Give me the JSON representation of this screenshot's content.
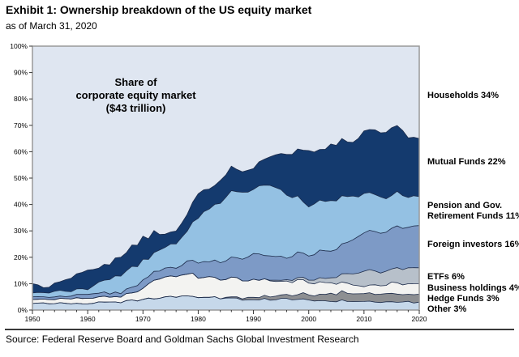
{
  "header": {
    "title": "Exhibit 1: Ownership breakdown of the US equity market",
    "subtitle": "as of March 31, 2020"
  },
  "annotation": {
    "line1": "Share of",
    "line2": "corporate equity market",
    "line3": "($43 trillion)"
  },
  "legend_labels": {
    "households": "Households 34%",
    "mutual_funds": "Mutual Funds 22%",
    "pension_line1": "Pension and Gov.",
    "pension_line2": "Retirement Funds 11%",
    "foreign_investors": "Foreign investors 16%",
    "etfs": "ETFs 6%",
    "business_holdings": "Business holdings 4%",
    "hedge_funds": "Hedge Funds 3%",
    "other": "Other 3%"
  },
  "footer": {
    "source": "Source: Federal Reserve Board and Goldman Sachs Global Investment Research"
  },
  "chart_data": {
    "type": "area",
    "stacked": true,
    "title": "Share of corporate equity market ($43 trillion)",
    "unit": "% of US corporate equity market",
    "ylim": [
      0,
      100
    ],
    "ytick_labels": [
      "0%",
      "10%",
      "20%",
      "30%",
      "40%",
      "50%",
      "60%",
      "70%",
      "80%",
      "90%",
      "100%"
    ],
    "xtick_years": [
      1950,
      1960,
      1970,
      1980,
      1990,
      2000,
      2010,
      2020
    ],
    "x_years": [
      1950,
      1952,
      1954,
      1956,
      1958,
      1960,
      1962,
      1964,
      1966,
      1968,
      1970,
      1972,
      1974,
      1976,
      1978,
      1980,
      1982,
      1984,
      1986,
      1988,
      1990,
      1992,
      1994,
      1996,
      1998,
      2000,
      2002,
      2004,
      2006,
      2008,
      2010,
      2012,
      2014,
      2016,
      2018,
      2020
    ],
    "series": [
      {
        "name": "Other",
        "share_2020_pct": 3,
        "color": "#c6d8ea",
        "values": [
          2.5,
          2.5,
          2.5,
          2.5,
          2.5,
          2.5,
          3,
          3,
          3,
          3.5,
          4,
          4.5,
          5,
          5,
          5,
          5,
          4.5,
          4.5,
          4.5,
          4,
          4,
          4,
          4,
          4,
          4,
          4,
          3.5,
          3.5,
          3.5,
          3,
          3,
          3,
          3,
          3,
          3,
          3
        ]
      },
      {
        "name": "Hedge Funds",
        "share_2020_pct": 3,
        "color": "#8d8f92",
        "values": [
          0,
          0,
          0,
          0,
          0,
          0,
          0,
          0,
          0,
          0,
          0,
          0,
          0,
          0,
          0,
          0,
          0,
          0,
          0.5,
          0.5,
          1,
          1,
          1.5,
          1.5,
          2,
          2,
          2.5,
          3,
          3,
          3,
          3,
          3,
          3,
          3,
          3,
          3
        ]
      },
      {
        "name": "Business holdings",
        "share_2020_pct": 4,
        "color": "#f3f3f1",
        "values": [
          1.5,
          1.5,
          1.5,
          2,
          2,
          2,
          2,
          2,
          2.5,
          3,
          4,
          6.5,
          7.5,
          7.5,
          8,
          8,
          8,
          7.5,
          7,
          7,
          6.5,
          6,
          5.5,
          5.5,
          5,
          5,
          4.5,
          4,
          3.5,
          3.5,
          3,
          3.5,
          3.5,
          4,
          4,
          4
        ]
      },
      {
        "name": "ETFs",
        "share_2020_pct": 6,
        "color": "#b7c0ca",
        "values": [
          0,
          0,
          0,
          0,
          0,
          0,
          0,
          0,
          0,
          0,
          0,
          0,
          0,
          0,
          0,
          0,
          0,
          0,
          0,
          0,
          0,
          0,
          0.5,
          0.5,
          1,
          1,
          1.5,
          2,
          3,
          4,
          5.5,
          5.5,
          5.5,
          5.5,
          6,
          6
        ]
      },
      {
        "name": "Foreign investors",
        "share_2020_pct": 16,
        "color": "#7d9ac6",
        "values": [
          1,
          1,
          1,
          1,
          1.5,
          1.5,
          1.5,
          1.5,
          1.5,
          2,
          3,
          3,
          3,
          3,
          4.5,
          6,
          6,
          6.5,
          7,
          8,
          10,
          9,
          8.5,
          8.5,
          9,
          9.5,
          10,
          10.5,
          11,
          13,
          14.5,
          15,
          15.5,
          16,
          16,
          16
        ]
      },
      {
        "name": "Pension and Gov. Retirement Funds",
        "share_2020_pct": 11,
        "color": "#94c1e3",
        "values": [
          1.5,
          1.5,
          2,
          2,
          2,
          2,
          4.5,
          5.5,
          6,
          7,
          7.5,
          7,
          8,
          9,
          12,
          17,
          20,
          23,
          25,
          25,
          24.5,
          27,
          26,
          24,
          21,
          19,
          19,
          19,
          18.5,
          16,
          14.5,
          14,
          13,
          12.5,
          11.5,
          11
        ]
      },
      {
        "name": "Mutual Funds",
        "share_2020_pct": 22,
        "color": "#143a6e",
        "values": [
          3.5,
          2,
          3,
          4.5,
          5.5,
          7,
          5.5,
          6,
          6.5,
          8,
          9,
          7.5,
          5,
          5.5,
          6,
          8.5,
          7.5,
          8,
          9.5,
          8,
          8,
          10,
          12,
          15,
          18,
          21,
          19,
          21,
          21.5,
          20,
          23.5,
          24,
          25,
          25.5,
          23,
          22
        ]
      }
    ],
    "households": {
      "name": "Households",
      "share_2020_pct": 34,
      "color": "#dfe6f1",
      "note": "remainder of stack up to 100%"
    },
    "outline_color": "#1c2b4a",
    "plot_border_color": "#999999",
    "tick_color": "#333333",
    "legend_position": "right"
  }
}
